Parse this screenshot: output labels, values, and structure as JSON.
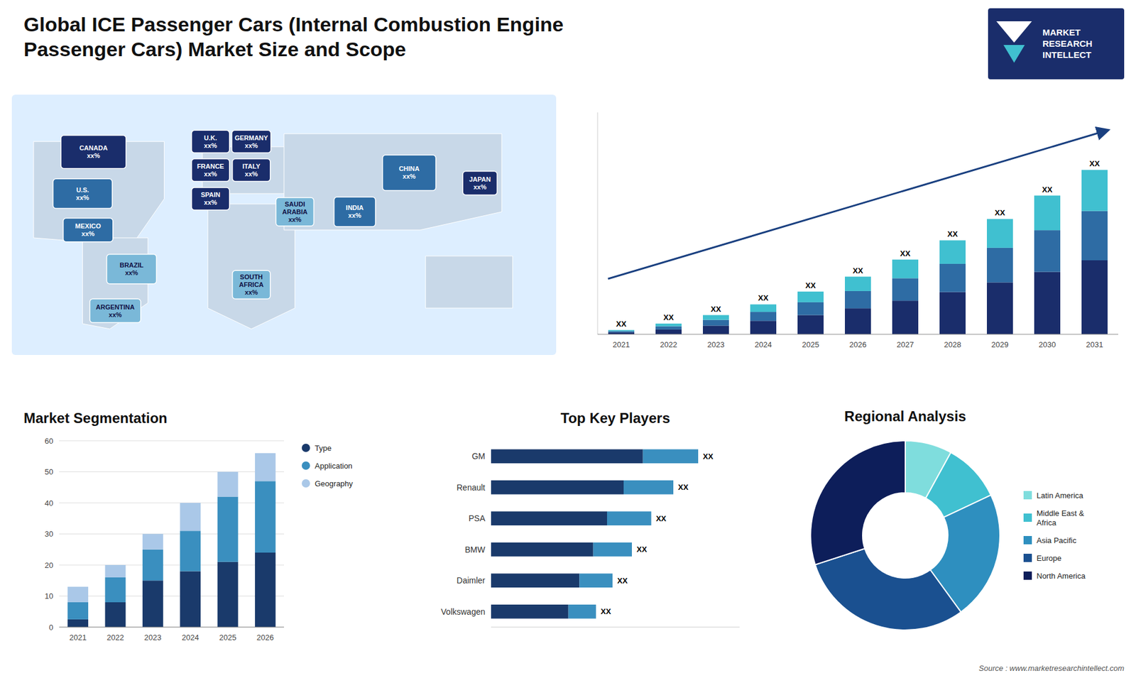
{
  "title": "Global ICE Passenger Cars (Internal Combustion Engine\nPassenger Cars) Market Size and Scope",
  "annotations": [
    "MARKET\nRESEARCH\nINTELLECT",
    "Source : www.marketresearchintellect.com"
  ],
  "chart_data": [
    {
      "type": "map",
      "categories": [
        "CANADA\nxx%",
        "U.S.\nxx%",
        "MEXICO\nxx%",
        "BRAZIL\nxx%",
        "ARGENTINA\nxx%",
        "U.K.\nxx%",
        "FRANCE\nxx%",
        "SPAIN\nxx%",
        "GERMANY\nxx%",
        "ITALY\nxx%",
        "SAUDI\nARABIA\nxx%",
        "SOUTH\nAFRICA\nxx%",
        "INDIA\nxx%",
        "CHINA\nxx%",
        "JAPAN\nxx%"
      ],
      "colors": [
        "#1a2d6b",
        "#2e6ca4",
        "#2e6ca4",
        "#7ab8d8",
        "#7ab8d8",
        "#1a2d6b",
        "#1a2d6b",
        "#1a2d6b",
        "#1a2d6b",
        "#1a2d6b",
        "#7ab8d8",
        "#7ab8d8",
        "#2e6ca4",
        "#2e6ca4",
        "#1a2d6b"
      ]
    },
    {
      "type": "bar",
      "stacked": true,
      "data_labels": true,
      "tick_labels": "x",
      "categories": [
        "2021",
        "2022",
        "2023",
        "2024",
        "2025",
        "2026",
        "2027",
        "2028",
        "2029",
        "2030",
        "2031"
      ],
      "series": [
        {
          "color": "#1a2d6b",
          "values": [
            0.9,
            2.25,
            4.05,
            6.3,
            9,
            12.15,
            15.75,
            19.8,
            24.3,
            29.25,
            34.65
          ]
        },
        {
          "color": "#2e6ca4",
          "values": [
            0.6,
            1.5,
            2.7,
            4.2,
            6,
            8.1,
            10.5,
            13.2,
            16.2,
            19.5,
            23.1
          ]
        },
        {
          "color": "#40c0d0",
          "values": [
            0.5,
            1.25,
            2.25,
            3.5,
            5,
            6.75,
            8.75,
            11,
            13.5,
            16.25,
            19.25
          ],
          "value_labels": [
            "XX",
            "XX",
            "XX",
            "XX",
            "XX",
            "XX",
            "XX",
            "XX",
            "XX",
            "XX",
            "XX"
          ]
        }
      ],
      "ylim": [
        0,
        103.95
      ]
    },
    {
      "type": "bar",
      "stacked": true,
      "title": "Market Segmentation",
      "categories": [
        "2021",
        "2022",
        "2023",
        "2024",
        "2025",
        "2026"
      ],
      "series": [
        {
          "name": "Type",
          "color": "#1a3a6b",
          "values": [
            2.5,
            8,
            15,
            18,
            21,
            24
          ]
        },
        {
          "name": "Application",
          "color": "#3a8fbf",
          "values": [
            5.5,
            8,
            10,
            13,
            21,
            23
          ]
        },
        {
          "name": "Geography",
          "color": "#aac8e8",
          "values": [
            5,
            4,
            5,
            9,
            8,
            9
          ]
        }
      ],
      "ylim": [
        0,
        60
      ],
      "yticks": [
        0,
        10,
        20,
        30,
        40,
        50,
        60
      ],
      "grid": true,
      "legend": "right"
    },
    {
      "type": "bar",
      "orientation": "horizontal",
      "stacked": true,
      "data_labels": true,
      "tick_labels": "y",
      "title": "Top Key Players",
      "categories": [
        "GM",
        "Renault",
        "PSA",
        "BMW",
        "Daimler",
        "Volkswagen"
      ],
      "series": [
        {
          "color": "#1a3a6b",
          "values": [
            55,
            48,
            42,
            37,
            32,
            28
          ]
        },
        {
          "color": "#3a8fbf",
          "values": [
            20,
            18,
            16,
            14,
            12,
            10
          ],
          "value_labels": [
            "XX",
            "XX",
            "XX",
            "XX",
            "XX",
            "XX"
          ]
        }
      ],
      "xlim": [
        0,
        90
      ]
    },
    {
      "type": "donut",
      "title": "Regional Analysis",
      "categories": [
        "Latin America",
        "Middle East &\nAfrica",
        "Asia Pacific",
        "Europe",
        "North America"
      ],
      "values": [
        8,
        10,
        22,
        30,
        30
      ],
      "colors": [
        "#7fdddd",
        "#40c0d0",
        "#2e8fbf",
        "#1a5090",
        "#0d1e5a"
      ],
      "legend": "right"
    }
  ]
}
